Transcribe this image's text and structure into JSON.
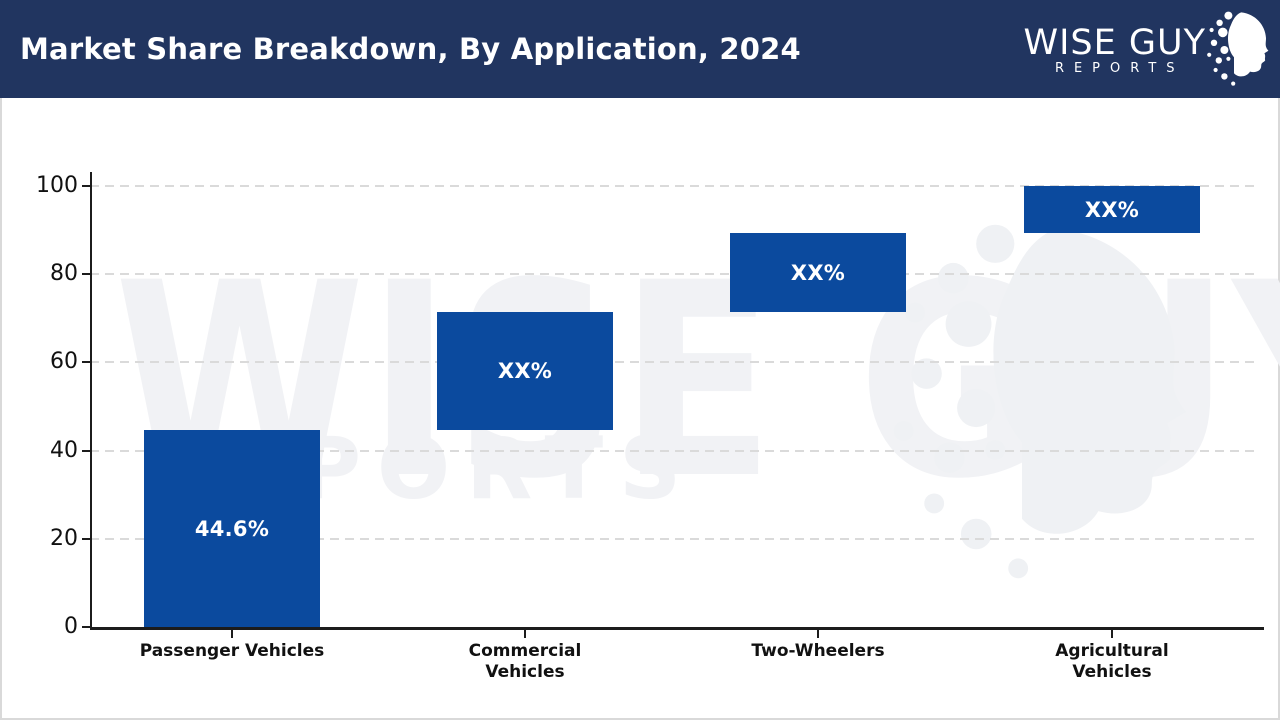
{
  "header": {
    "title": "Market Share Breakdown, By Application, 2024",
    "logo": {
      "line1": "WISE GUY",
      "line2": "REPORTS"
    }
  },
  "watermark": {
    "line1": "WISE GUY",
    "line2": "PORTS"
  },
  "colors": {
    "header_bg": "#213560",
    "bar_blue": "#0b4a9e",
    "gridline": "#dadada",
    "watermark": "#f1f2f5"
  },
  "chart_data": {
    "type": "bar",
    "subtype": "waterfall-floating-bars",
    "title": "Market Share Breakdown, By Application, 2024",
    "xlabel": "",
    "ylabel": "",
    "ylim": [
      0,
      100
    ],
    "yticks": [
      0,
      20,
      40,
      60,
      80,
      100
    ],
    "grid": "horizontal-dashed",
    "legend": "none",
    "categories": [
      "Passenger Vehicles",
      "Commercial\nVehicles",
      "Two-Wheelers",
      "Agricultural\nVehicles"
    ],
    "bars": [
      {
        "category": "Passenger Vehicles",
        "start": 0,
        "end": 44.6,
        "label": "44.6%"
      },
      {
        "category": "Commercial Vehicles",
        "start": 44.6,
        "end": 71.4,
        "label": "XX%"
      },
      {
        "category": "Two-Wheelers",
        "start": 71.4,
        "end": 89.3,
        "label": "XX%"
      },
      {
        "category": "Agricultural Vehicles",
        "start": 89.3,
        "end": 100,
        "label": "XX%"
      }
    ]
  }
}
